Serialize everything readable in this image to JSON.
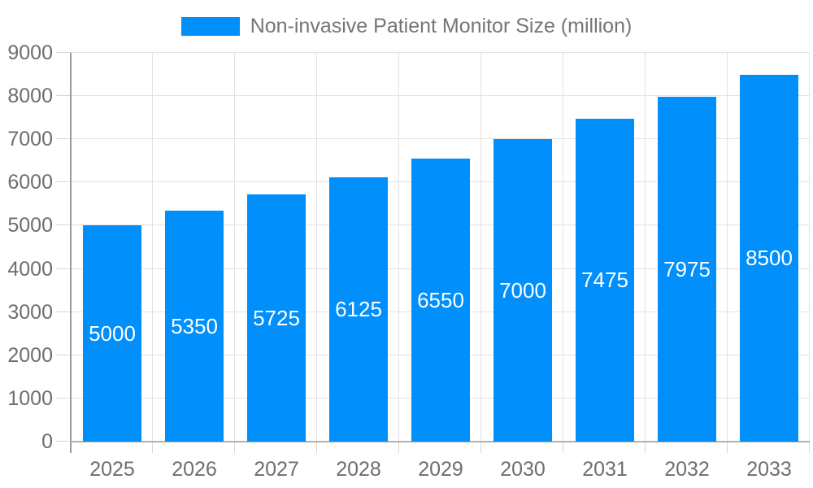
{
  "chart_data": {
    "type": "bar",
    "title": "Non-invasive Patient Monitor Size (million)",
    "legend": {
      "position": "top",
      "entries": [
        "Non-invasive Patient Monitor Size (million)"
      ]
    },
    "categories": [
      "2025",
      "2026",
      "2027",
      "2028",
      "2029",
      "2030",
      "2031",
      "2032",
      "2033"
    ],
    "series": [
      {
        "name": "Non-invasive Patient Monitor Size (million)",
        "values": [
          5000,
          5350,
          5725,
          6125,
          6550,
          7000,
          7475,
          7975,
          8500
        ]
      }
    ],
    "bar_labels": [
      "5000",
      "5350",
      "5725",
      "6125",
      "6550",
      "7000",
      "7475",
      "7975",
      "8500"
    ],
    "xlabel": "",
    "ylabel": "",
    "ylim": [
      0,
      9000
    ],
    "y_tick_step": 1000,
    "y_tick_labels": [
      "0",
      "1000",
      "2000",
      "3000",
      "4000",
      "5000",
      "6000",
      "7000",
      "8000",
      "9000"
    ],
    "grid": true,
    "colors": {
      "bar": "#008FFB",
      "bar_label_text": "#FFFFFF",
      "axis_text": "#6E6E6E",
      "legend_text": "#757575",
      "gridline": "#E2E2E2",
      "axis_line": "#9A9A9A"
    }
  }
}
